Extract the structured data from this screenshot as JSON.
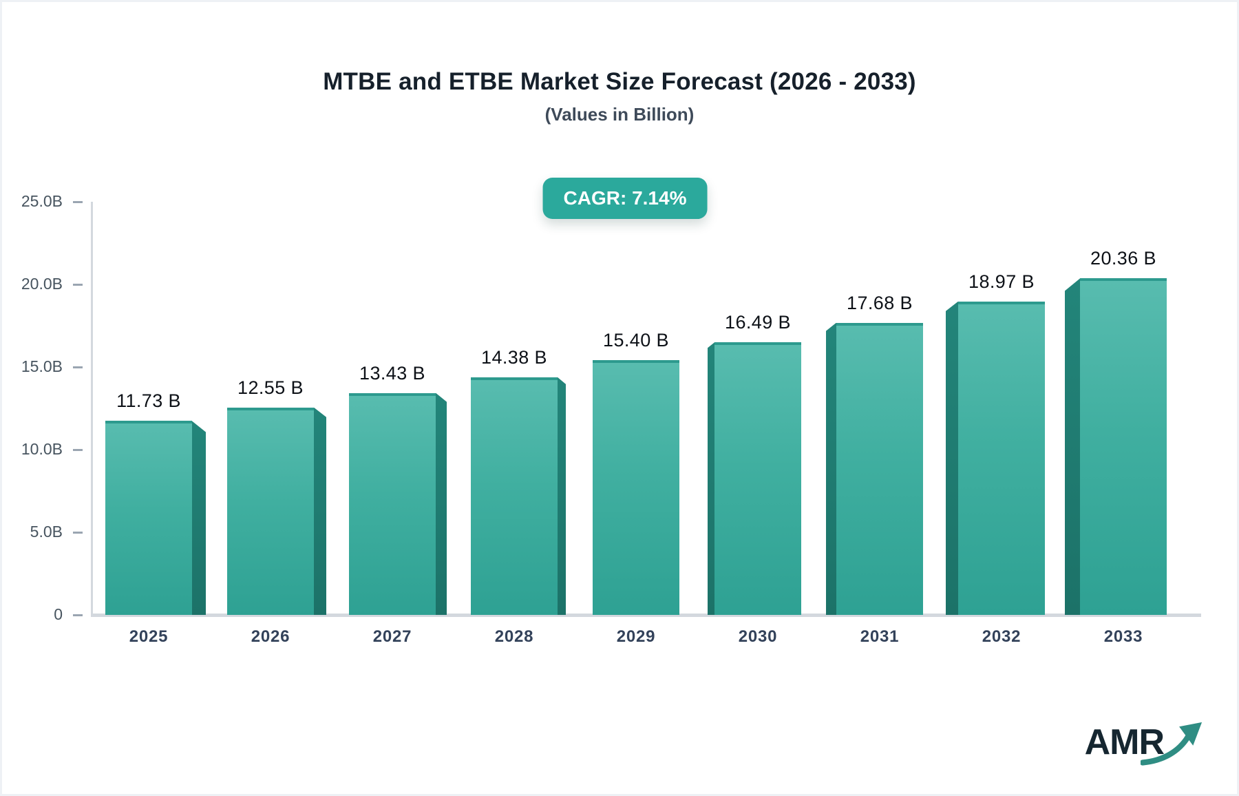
{
  "header": {
    "title": "MTBE and ETBE Market Size Forecast (2026 - 2033)",
    "subtitle": "(Values in Billion)"
  },
  "badge": {
    "label": "CAGR: 7.14%",
    "bg_color": "#2BA99C",
    "text_color": "#FFFFFF"
  },
  "chart_data": {
    "type": "bar",
    "title": "MTBE and ETBE Market Size Forecast (2026 - 2033)",
    "subtitle": "(Values in Billion)",
    "categories": [
      "2025",
      "2026",
      "2027",
      "2028",
      "2029",
      "2030",
      "2031",
      "2032",
      "2033"
    ],
    "values": [
      11.73,
      12.55,
      13.43,
      14.38,
      15.4,
      16.49,
      17.68,
      18.97,
      20.36
    ],
    "value_labels": [
      "11.73 B",
      "12.55 B",
      "13.43 B",
      "14.38 B",
      "15.40 B",
      "16.49 B",
      "17.68 B",
      "18.97 B",
      "20.36 B"
    ],
    "xlabel": "",
    "ylabel": "",
    "ylim": [
      0,
      25
    ],
    "y_ticks": [
      {
        "value": 25,
        "label": "25.0B"
      },
      {
        "value": 20,
        "label": "20.0B"
      },
      {
        "value": 15,
        "label": "15.0B"
      },
      {
        "value": 10,
        "label": "10.0B"
      },
      {
        "value": 5,
        "label": "5.0B"
      },
      {
        "value": 0,
        "label": "0"
      }
    ],
    "grid": false,
    "legend": false,
    "bar_colors": {
      "front_top": "#58BCAF",
      "front_bottom": "#2EA193",
      "top_edge": "#2D9A8E",
      "side_face": "#1E7C70"
    },
    "style_note": "3d-extruded-bars-facing-center"
  },
  "logo": {
    "text": "AMR",
    "arrow_icon": "trend-up-arrow-icon",
    "text_color": "#152630",
    "arrow_color": "#2F8D83"
  }
}
